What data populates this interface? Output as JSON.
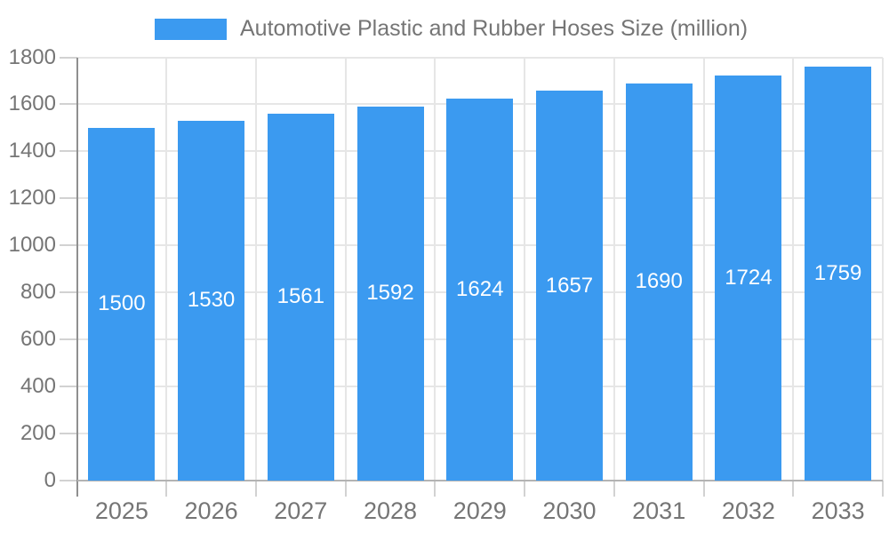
{
  "legend": {
    "label": "Automotive Plastic and Rubber Hoses Size (million)"
  },
  "chart_data": {
    "type": "bar",
    "title": "Automotive Plastic and Rubber Hoses Size (million)",
    "categories": [
      "2025",
      "2026",
      "2027",
      "2028",
      "2029",
      "2030",
      "2031",
      "2032",
      "2033"
    ],
    "values": [
      1500,
      1530,
      1561,
      1592,
      1624,
      1657,
      1690,
      1724,
      1759
    ],
    "bar_labels": [
      "1500",
      "1530",
      "1561",
      "1592",
      "1624",
      "1657",
      "1690",
      "1724",
      "1759"
    ],
    "xlabel": "",
    "ylabel": "",
    "ylim": [
      0,
      1800
    ],
    "ytick_step": 200,
    "ytick_labels": [
      "0",
      "200",
      "400",
      "600",
      "800",
      "1000",
      "1200",
      "1400",
      "1600",
      "1800"
    ],
    "grid": true,
    "legend_position": "top",
    "colors": {
      "bar": "#3B9AF0",
      "bar_label": "#ffffff",
      "axis_text": "#757575",
      "gridline": "#e6e6e6",
      "tick": "#d2d2d2",
      "x_axis_line": "#b3b3b3",
      "y_axis_line": "#8f8f8f",
      "background": "#ffffff"
    }
  }
}
